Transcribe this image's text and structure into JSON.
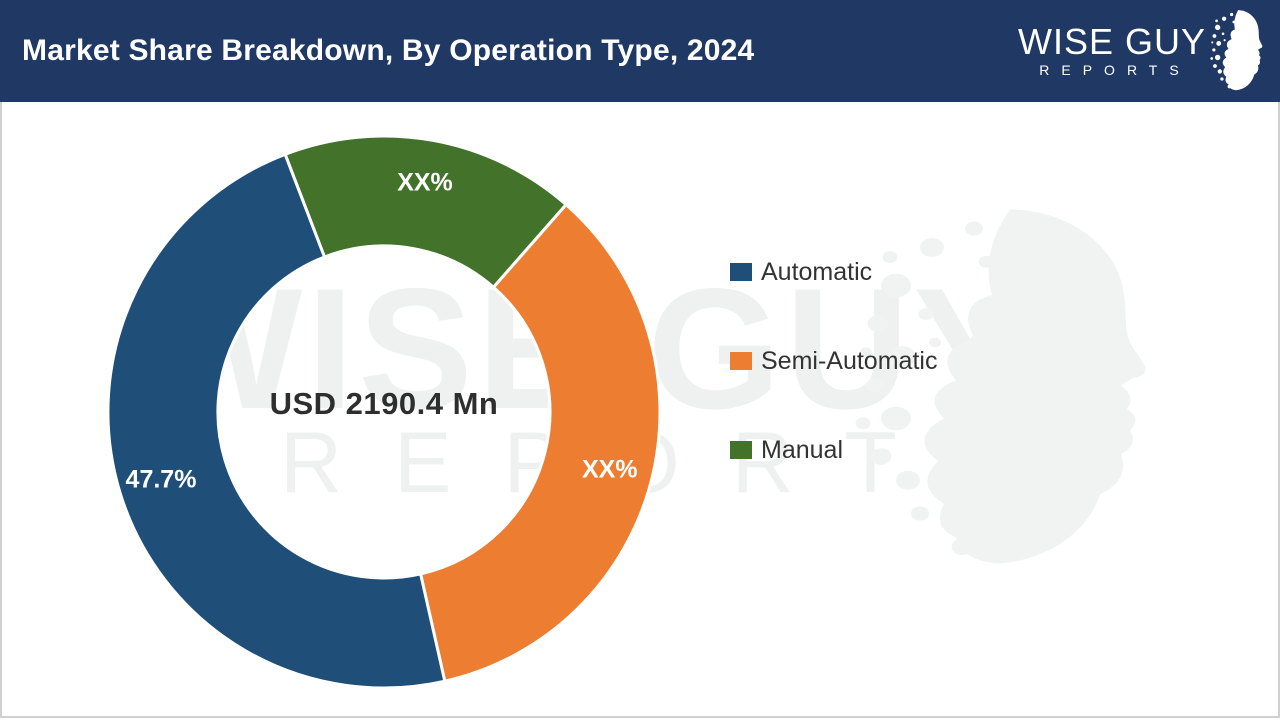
{
  "header": {
    "title": "Market Share Breakdown, By Operation Type, 2024",
    "bg_color": "#1f3864",
    "logo": {
      "line1": "WISE GUY",
      "line2": "REPORTS"
    }
  },
  "watermark": {
    "line1": "WISE GUY",
    "line2": "REPORTS"
  },
  "chart_data": {
    "type": "donut",
    "title": "Market Share Breakdown, By Operation Type, 2024",
    "center_label": "USD 2190.4 Mn",
    "start_angle_deg": -21,
    "inner_radius_ratio": 0.6,
    "gap_color": "#ffffff",
    "segments": [
      {
        "name": "Manual",
        "label": "XX%",
        "value": 17.3,
        "color": "#43722a"
      },
      {
        "name": "Semi-Automatic",
        "label": "XX%",
        "value": 35.0,
        "color": "#ed7d31"
      },
      {
        "name": "Automatic",
        "label": "47.7%",
        "value": 47.7,
        "color": "#1f4e79"
      }
    ],
    "legend_position": "right",
    "legend": [
      {
        "label": "Automatic",
        "color": "#1f4e79"
      },
      {
        "label": "Semi-Automatic",
        "color": "#ed7d31"
      },
      {
        "label": "Manual",
        "color": "#43722a"
      }
    ]
  }
}
